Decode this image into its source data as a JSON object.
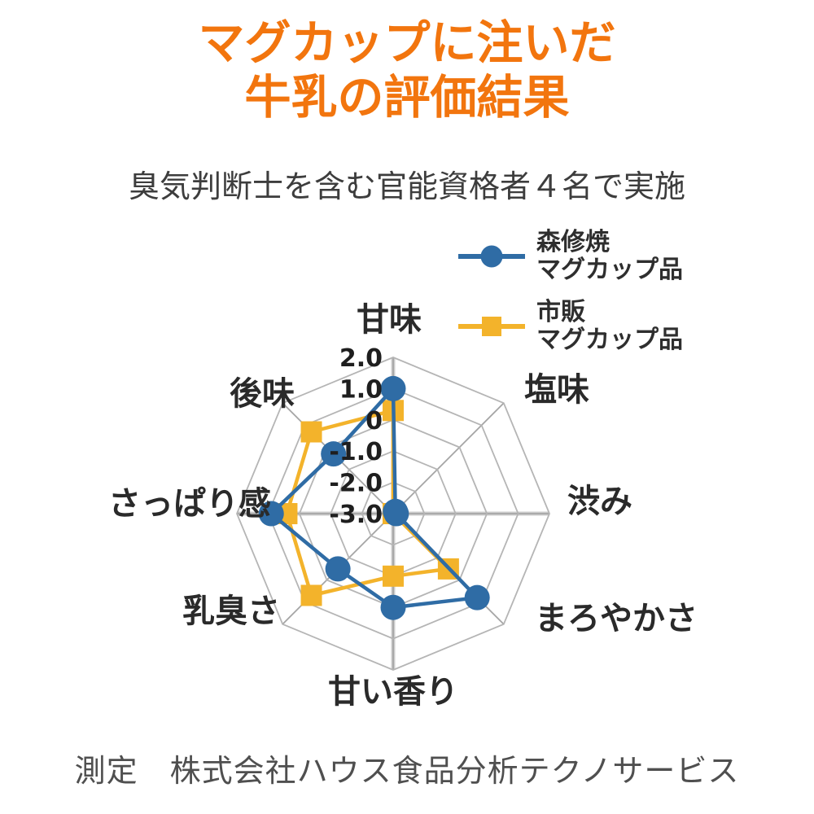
{
  "page": {
    "title_line1": "マグカップに注いだ",
    "title_line2": "牛乳の評価結果",
    "subtitle": "臭気判断士を含む官能資格者４名で実施",
    "footer": "測定　株式会社ハウス食品分析テクノサービス",
    "title_color": "#f2750e"
  },
  "legend": {
    "items": [
      {
        "label_line1": "森修焼",
        "label_line2": "マグカップ品",
        "color": "#2f6ca5",
        "marker": "circle"
      },
      {
        "label_line1": "市販",
        "label_line2": "マグカップ品",
        "color": "#f3b32b",
        "marker": "square"
      }
    ]
  },
  "chart_data": {
    "type": "radar",
    "categories": [
      "甘味",
      "塩味",
      "渋み",
      "まろやかさ",
      "甘い香り",
      "乳臭さ",
      "さっぱり感",
      "後味"
    ],
    "series": [
      {
        "name": "森修焼マグカップ品",
        "color": "#2f6ca5",
        "marker": "circle",
        "values": [
          1.0,
          -2.9,
          -2.9,
          0.8,
          0.0,
          -0.5,
          0.9,
          -0.3
        ]
      },
      {
        "name": "市販マグカップ品",
        "color": "#f3b32b",
        "marker": "square",
        "values": [
          0.3,
          -3.0,
          -3.0,
          -0.5,
          -1.0,
          0.7,
          0.4,
          0.7
        ]
      }
    ],
    "scale": {
      "min": -3.0,
      "max": 2.0,
      "tick_values": [
        2,
        1,
        0,
        -1,
        -2,
        -3
      ],
      "tick_labels": [
        "2.0",
        "1.0",
        "0",
        "-1.0",
        "-2.0",
        "-3.0"
      ]
    },
    "grid": {
      "ring_color": "#b5b5b5",
      "spoke_color": "#a5a5a5",
      "cross_color": "#cdcdcd"
    },
    "axis_label_color": "#2a2a2a",
    "tick_label_color": "#1e1e1e"
  }
}
